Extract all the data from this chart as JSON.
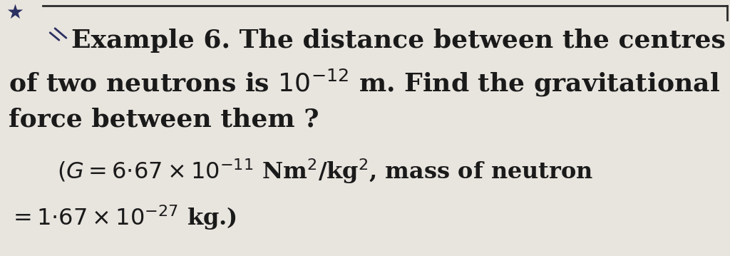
{
  "background_color": "#e8e4de",
  "text_color": "#1a1a1a",
  "box_line_color": "#2a2a2a",
  "fig_width": 10.24,
  "fig_height": 3.59,
  "fontsize_main": 26,
  "fontsize_sub": 23,
  "line1": "Example 6. The distance between the centres",
  "line2": "of two neutrons is $10^{-12}$ m. Find the gravitational",
  "line3": "force between them ?",
  "line4_part1": "$(G = 6{\\cdot}67 \\times 10^{-11}$ Nm$^2$/kg$^2$, mass of neutron",
  "line5": "$= 1{\\cdot}67 \\times 10^{-27}$ kg.)"
}
